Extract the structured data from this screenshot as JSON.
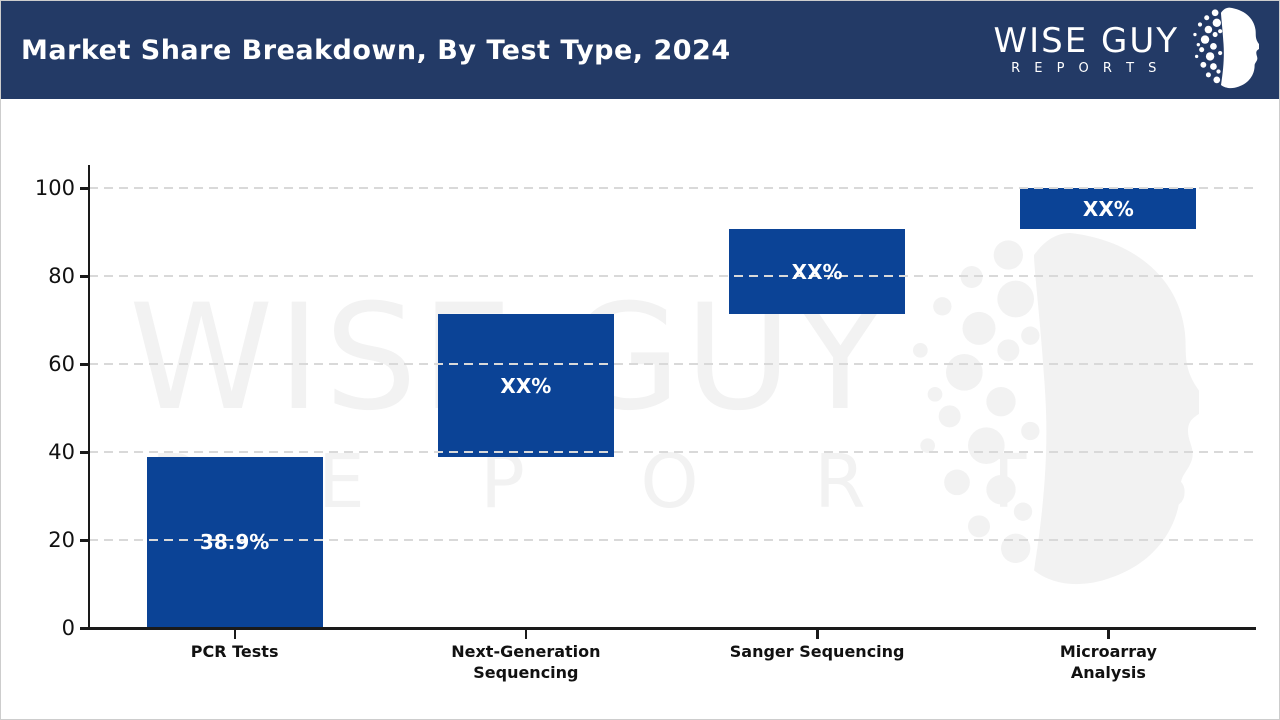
{
  "header": {
    "title": "Market Share Breakdown, By Test Type, 2024",
    "logo": {
      "line1": "WISE GUY",
      "line2": "R E P O R T S"
    }
  },
  "watermark": {
    "line1": "WISE GUY",
    "line2": "R E P O R T S"
  },
  "chart_data": {
    "type": "bar",
    "subtype": "waterfall",
    "title": "Market Share Breakdown, By Test Type, 2024",
    "categories": [
      "PCR Tests",
      "Next-Generation\nSequencing",
      "Sanger Sequencing",
      "Microarray\nAnalysis"
    ],
    "segments": [
      {
        "category": "PCR Tests",
        "start": 0,
        "end": 38.9,
        "value_label": "38.9%"
      },
      {
        "category": "Next-Generation Sequencing",
        "start": 38.9,
        "end": 71.3,
        "value_label": "XX%"
      },
      {
        "category": "Sanger Sequencing",
        "start": 71.3,
        "end": 90.6,
        "value_label": "XX%"
      },
      {
        "category": "Microarray Analysis",
        "start": 90.6,
        "end": 100,
        "value_label": "XX%"
      }
    ],
    "y_ticks": [
      0,
      20,
      40,
      60,
      80,
      100
    ],
    "ylim": [
      0,
      105
    ],
    "xlabel": "",
    "ylabel": "",
    "legend": "none",
    "grid": "horizontal-dashed"
  },
  "colors": {
    "header_bg": "#233a66",
    "bar": "#0b4396",
    "grid": "#d9d9d9",
    "axis": "#1a1a1a",
    "value_label": "#ffffff",
    "watermark": "#f2f2f2"
  }
}
